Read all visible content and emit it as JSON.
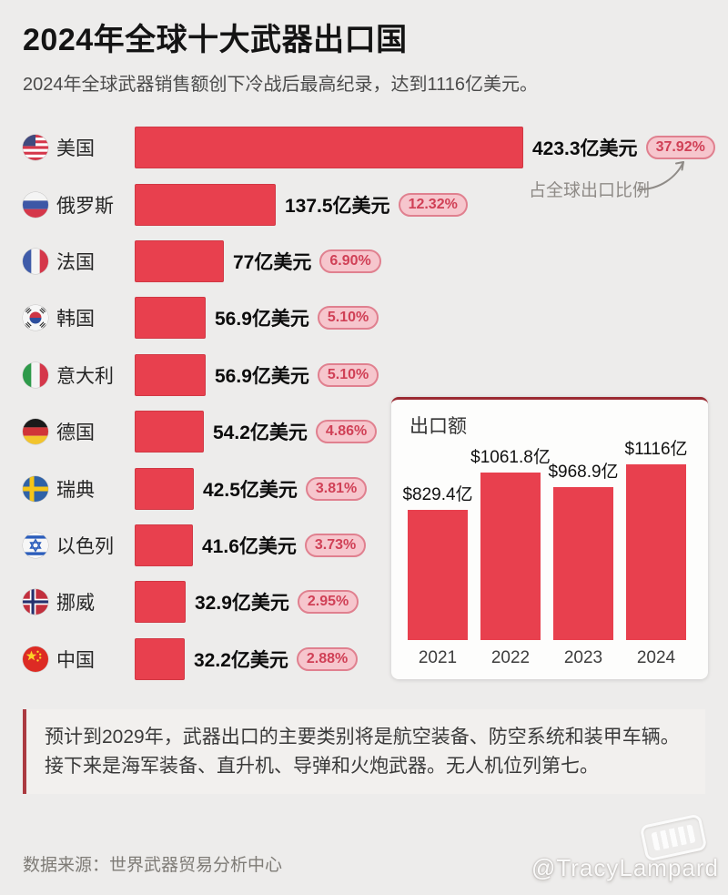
{
  "header": {
    "title": "2024年全球十大武器出口国",
    "subtitle": "2024年全球武器销售额创下冷战后最高纪录，达到1116亿美元。"
  },
  "ranking": {
    "annotation": "占全球出口比例",
    "rows": [
      {
        "country": "美国",
        "flag": "us",
        "value": 423.3,
        "value_label": "423.3亿美元",
        "share_label": "37.92%"
      },
      {
        "country": "俄罗斯",
        "flag": "ru",
        "value": 137.5,
        "value_label": "137.5亿美元",
        "share_label": "12.32%"
      },
      {
        "country": "法国",
        "flag": "fr",
        "value": 77,
        "value_label": "77亿美元",
        "share_label": "6.90%"
      },
      {
        "country": "韩国",
        "flag": "kr",
        "value": 56.9,
        "value_label": "56.9亿美元",
        "share_label": "5.10%"
      },
      {
        "country": "意大利",
        "flag": "it",
        "value": 56.9,
        "value_label": "56.9亿美元",
        "share_label": "5.10%"
      },
      {
        "country": "德国",
        "flag": "de",
        "value": 54.2,
        "value_label": "54.2亿美元",
        "share_label": "4.86%"
      },
      {
        "country": "瑞典",
        "flag": "se",
        "value": 42.5,
        "value_label": "42.5亿美元",
        "share_label": "3.81%"
      },
      {
        "country": "以色列",
        "flag": "il",
        "value": 41.6,
        "value_label": "41.6亿美元",
        "share_label": "3.73%"
      },
      {
        "country": "挪威",
        "flag": "no",
        "value": 32.9,
        "value_label": "32.9亿美元",
        "share_label": "2.95%"
      },
      {
        "country": "中国",
        "flag": "cn",
        "value": 32.2,
        "value_label": "32.2亿美元",
        "share_label": "2.88%"
      }
    ]
  },
  "inset": {
    "title": "出口额",
    "years": [
      "2021",
      "2022",
      "2023",
      "2024"
    ],
    "values": [
      829.4,
      1061.8,
      968.9,
      1116
    ],
    "value_labels": [
      "$829.4亿",
      "$1061.8亿",
      "$968.9亿",
      "$1116亿"
    ]
  },
  "footer": {
    "note": "预计到2029年，武器出口的主要类别将是航空装备、防空系统和装甲车辆。接下来是海军装备、直升机、导弹和火炮武器。无人机位列第七。",
    "source": "数据来源：世界武器贸易分析中心"
  },
  "watermark": {
    "handle": "@TracyLampard"
  },
  "colors": {
    "page_bg": "#edeceb",
    "bar": "#e8404e",
    "pill_bg": "#f6c6cd",
    "pill_border": "#e0808f",
    "pill_text": "#d04056",
    "accent_dark": "#9c2b33"
  },
  "chart_data": [
    {
      "type": "bar",
      "orientation": "horizontal",
      "title": "2024年全球十大武器出口国",
      "categories": [
        "美国",
        "俄罗斯",
        "法国",
        "韩国",
        "意大利",
        "德国",
        "瑞典",
        "以色列",
        "挪威",
        "中国"
      ],
      "series": [
        {
          "name": "出口额(亿美元)",
          "values": [
            423.3,
            137.5,
            77,
            56.9,
            56.9,
            54.2,
            42.5,
            41.6,
            32.9,
            32.2
          ]
        },
        {
          "name": "占全球出口比例(%)",
          "values": [
            37.92,
            12.32,
            6.9,
            5.1,
            5.1,
            4.86,
            3.81,
            3.73,
            2.95,
            2.88
          ]
        }
      ],
      "legend": false,
      "grid": false
    },
    {
      "type": "bar",
      "title": "出口额",
      "categories": [
        "2021",
        "2022",
        "2023",
        "2024"
      ],
      "values": [
        829.4,
        1061.8,
        968.9,
        1116
      ],
      "xlabel": "",
      "ylabel": "出口额（$亿）",
      "ylim": [
        0,
        1116
      ],
      "grid": false,
      "legend": false
    }
  ]
}
